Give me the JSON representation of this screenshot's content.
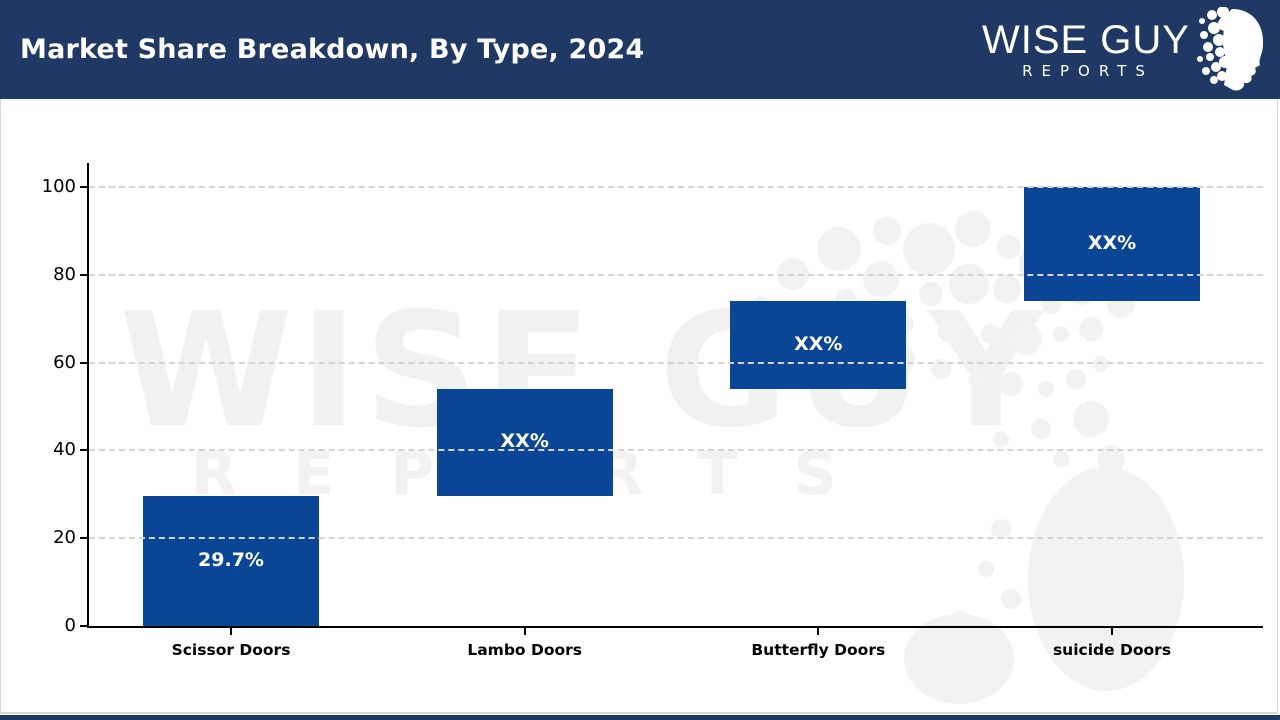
{
  "header": {
    "title": "Market Share Breakdown, By Type, 2024",
    "logo_line1": "WISE GUY",
    "logo_line2": "REPORTS",
    "bg_color": "#1f3864"
  },
  "watermark": {
    "line1": "WISE GUY",
    "line2": "REPORTS"
  },
  "chart_data": {
    "type": "bar",
    "subtype": "waterfall",
    "title": "Market Share Breakdown, By Type, 2024",
    "categories": [
      "Scissor Doors",
      "Lambo Doors",
      "Butterfly Doors",
      "suicide Doors"
    ],
    "segments": [
      {
        "category": "Scissor Doors",
        "start": 0,
        "end": 29.7,
        "label": "29.7%"
      },
      {
        "category": "Lambo Doors",
        "start": 29.7,
        "end": 54,
        "label": "XX%"
      },
      {
        "category": "Butterfly Doors",
        "start": 54,
        "end": 74,
        "label": "XX%"
      },
      {
        "category": "suicide Doors",
        "start": 74,
        "end": 100,
        "label": "XX%"
      }
    ],
    "yticks": [
      0,
      20,
      40,
      60,
      80,
      100
    ],
    "ylim": [
      0,
      105.5
    ],
    "xlabel": "",
    "ylabel": "",
    "bar_color": "#0a4596",
    "grid": "horizontal-dashed",
    "grid_color": "#d4d4d4",
    "legend": "none"
  }
}
